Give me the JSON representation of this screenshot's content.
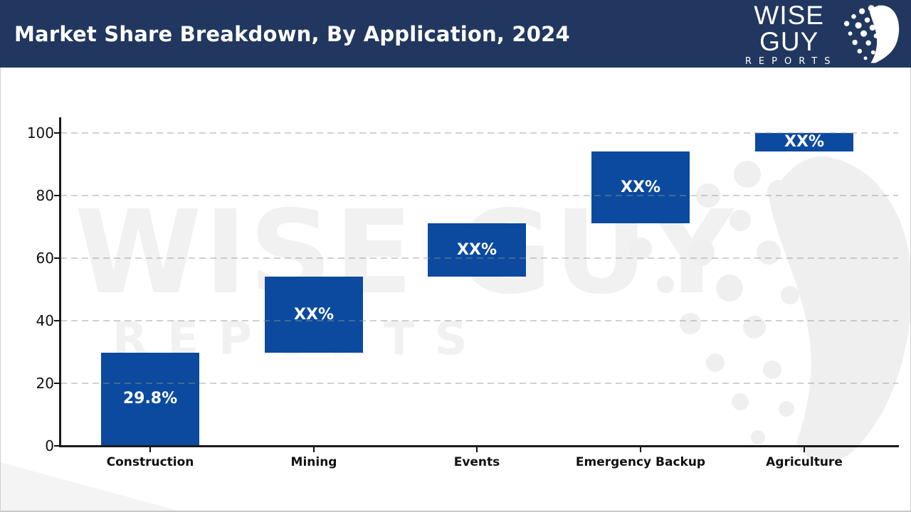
{
  "header": {
    "title": "Market Share Breakdown, By Application, 2024",
    "bg_color": "#21375f",
    "logo": {
      "line1": "WISE GUY",
      "line2": "REPORTS"
    }
  },
  "watermark": {
    "line1": "WISE GUY",
    "line2": "REPORTS"
  },
  "chart_data": {
    "type": "bar",
    "subtype": "floating-waterfall",
    "title": "Market Share Breakdown, By Application, 2024",
    "categories": [
      "Construction",
      "Mining",
      "Events",
      "Emergency Backup",
      "Agriculture"
    ],
    "segments": [
      {
        "category": "Construction",
        "start": 0,
        "end": 29.8,
        "label": "29.8%"
      },
      {
        "category": "Mining",
        "start": 29.8,
        "end": 54.0,
        "label": "XX%"
      },
      {
        "category": "Events",
        "start": 54.0,
        "end": 71.2,
        "label": "XX%"
      },
      {
        "category": "Emergency Backup",
        "start": 71.2,
        "end": 94.0,
        "label": "XX%"
      },
      {
        "category": "Agriculture",
        "start": 94.0,
        "end": 100.0,
        "label": "XX%"
      }
    ],
    "xlabel": "",
    "ylabel": "",
    "yticks": [
      0,
      20,
      40,
      60,
      80,
      100
    ],
    "ylim": [
      0,
      105
    ],
    "grid": "horizontal-dashed",
    "legend": "none",
    "bar_color": "#0b4a9e",
    "bar_label_color": "#ffffff"
  }
}
